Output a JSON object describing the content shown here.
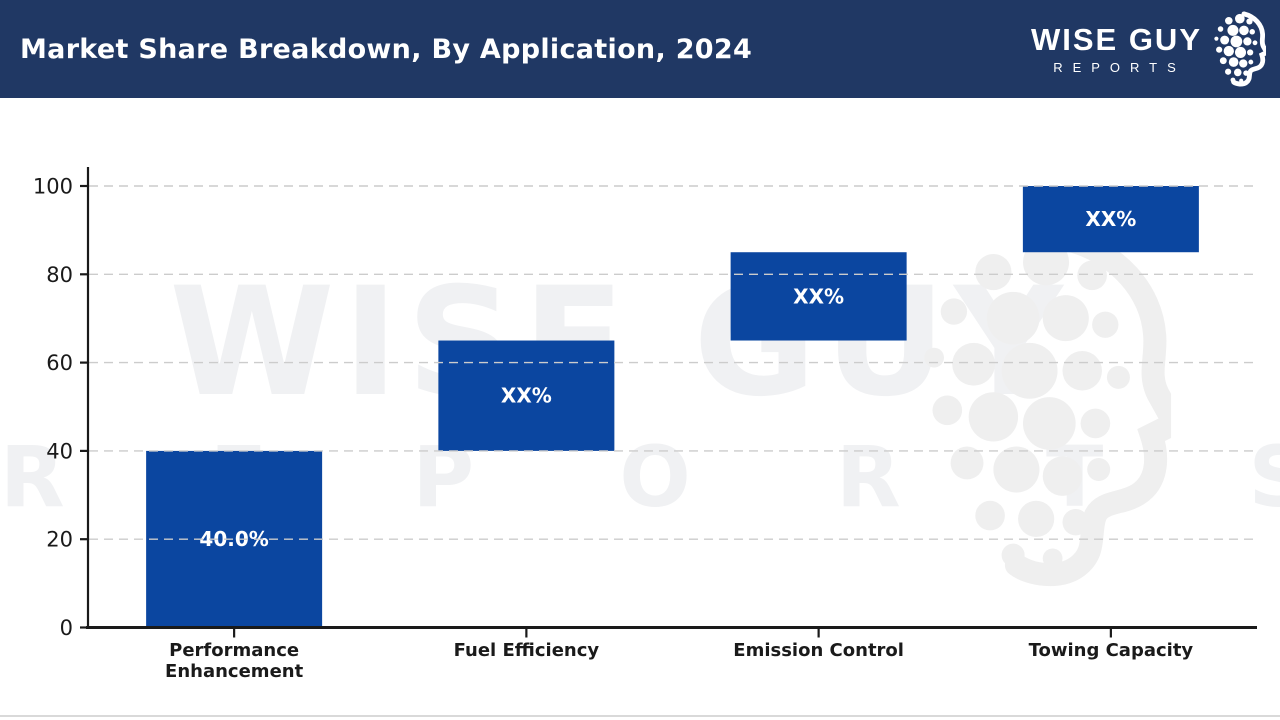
{
  "header": {
    "title": "Market Share Breakdown, By Application, 2024"
  },
  "logo": {
    "name": "WISE GUY REPORTS",
    "line1": "WISE GUY",
    "line2": "REPORTS"
  },
  "watermark": {
    "line1": "WISE GUY",
    "line2": "R E P O R T S"
  },
  "chart_data": {
    "type": "bar",
    "subtype": "floating-waterfall",
    "title": "Market Share Breakdown, By Application, 2024",
    "categories": [
      "Performance Enhancement",
      "Fuel Efficiency",
      "Emission Control",
      "Towing Capacity"
    ],
    "category_lines": [
      [
        "Performance",
        "Enhancement"
      ],
      [
        "Fuel Efficiency"
      ],
      [
        "Emission Control"
      ],
      [
        "Towing Capacity"
      ]
    ],
    "series": [
      {
        "name": "Market Share (%)",
        "segments": [
          {
            "category": "Performance Enhancement",
            "start": 0,
            "end": 40,
            "label": "40.0%"
          },
          {
            "category": "Fuel Efficiency",
            "start": 40,
            "end": 65,
            "label": "XX%"
          },
          {
            "category": "Emission Control",
            "start": 65,
            "end": 85,
            "label": "XX%"
          },
          {
            "category": "Towing Capacity",
            "start": 85,
            "end": 100,
            "label": "XX%"
          }
        ]
      }
    ],
    "yticks": [
      0,
      20,
      40,
      60,
      80,
      100
    ],
    "ylim": [
      0,
      100
    ],
    "xlabel": "",
    "ylabel": "",
    "grid": true,
    "grid_style": "dashed",
    "legend": false
  },
  "colors": {
    "header_bg": "#203864",
    "title_text": "#ffffff",
    "logo": "#ffffff",
    "bar": "#0b46a0",
    "bar_label": "#ffffff",
    "grid": "#cccccc",
    "axis": "#1a1a1a",
    "tick_label": "#1a1a1a",
    "watermark": "#f0f1f3",
    "bottom_line": "#d9d9d9"
  }
}
